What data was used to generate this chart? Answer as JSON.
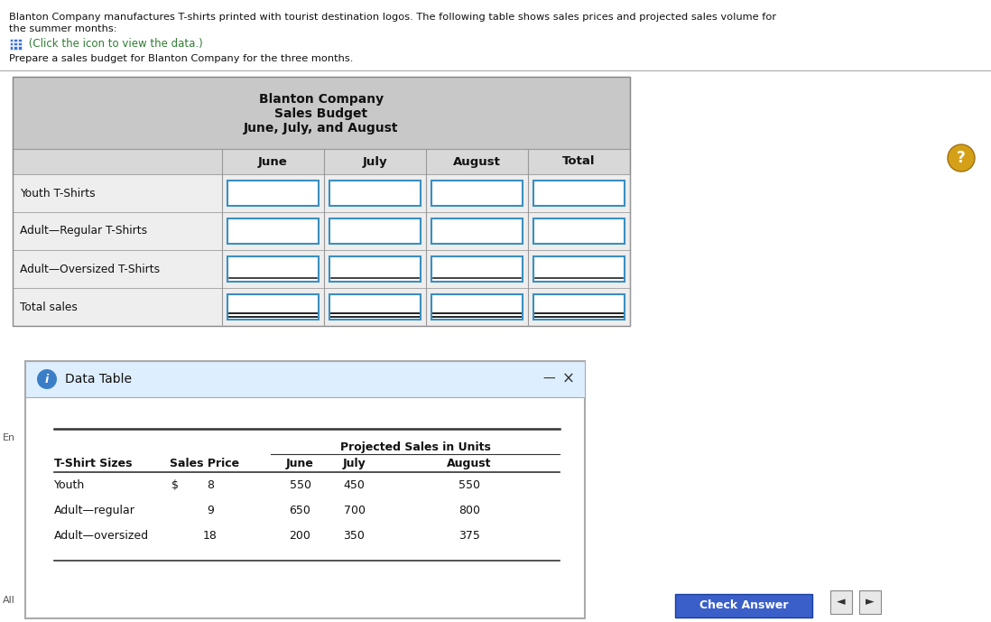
{
  "description_line1": "Blanton Company manufactures T-shirts printed with tourist destination logos. The following table shows sales prices and projected sales volume for",
  "description_line2": "the summer months:",
  "click_text": " (Click the icon to view the data.)",
  "prepare_text": "Prepare a sales budget for Blanton Company for the three months.",
  "table_title1": "Blanton Company",
  "table_title2": "Sales Budget",
  "table_title3": "June, July, and August",
  "col_headers": [
    "June",
    "July",
    "August",
    "Total"
  ],
  "row_labels": [
    "Youth T-Shirts",
    "Adult—Regular T-Shirts",
    "Adult—Oversized T-Shirts",
    "Total sales"
  ],
  "header_bg": "#c8c8c8",
  "header_row_bg": "#d8d8d8",
  "row_bg": "#eeeeee",
  "input_box_color": "#3a8fc0",
  "data_table_title": "Data Table",
  "data_rows": [
    [
      "Youth",
      "$",
      "8",
      "550",
      "450",
      "550"
    ],
    [
      "Adult—regular",
      "",
      "9",
      "650",
      "700",
      "800"
    ],
    [
      "Adult—oversized",
      "",
      "18",
      "200",
      "350",
      "375"
    ]
  ],
  "projected_label": "Projected Sales in Units",
  "info_icon_color": "#3a7ec8",
  "info_bg": "#ddeeff",
  "dialog_bg": "#ffffff",
  "dialog_border": "#aaaaaa",
  "check_btn_color": "#3a5fc8",
  "gold_btn_color": "#d4a017",
  "background_color": "#ffffff",
  "top_text_color": "#000000",
  "green_text_color": "#2e7d32",
  "icon_blue": "#3a6fd8"
}
